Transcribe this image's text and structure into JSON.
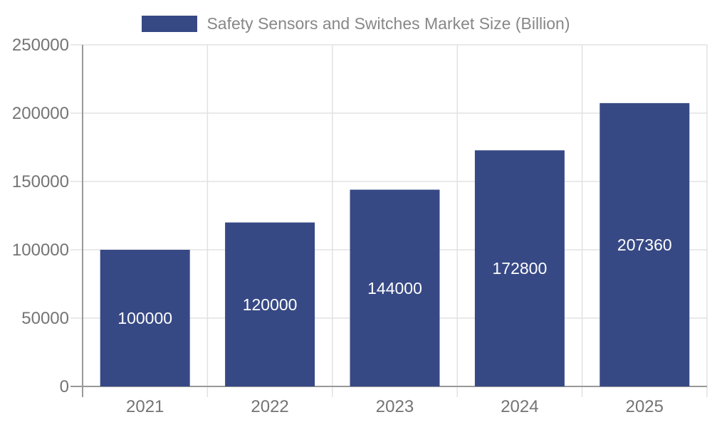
{
  "chart_data": {
    "type": "bar",
    "title": "Safety Sensors and Switches Market Size (Billion)",
    "legend_position": "top",
    "categories": [
      "2021",
      "2022",
      "2023",
      "2024",
      "2025"
    ],
    "series": [
      {
        "name": "Safety Sensors and Switches Market Size (Billion)",
        "values": [
          100000,
          120000,
          144000,
          172800,
          207360
        ]
      }
    ],
    "value_labels": [
      "100000",
      "120000",
      "144000",
      "172800",
      "207360"
    ],
    "xlabel": "",
    "ylabel": "",
    "ylim": [
      0,
      250000
    ],
    "yticks": [
      0,
      50000,
      100000,
      150000,
      200000,
      250000
    ],
    "ytick_labels": [
      "0",
      "50000",
      "100000",
      "150000",
      "200000",
      "250000"
    ],
    "grid": true,
    "value_labels_inside_bars": true
  },
  "colors": {
    "bar": "#374985",
    "axis_line": "#999999",
    "grid_line": "#e2e2e2",
    "tick_label": "#747474",
    "legend_text": "#878787",
    "value_label": "#ffffff",
    "background": "#ffffff"
  }
}
